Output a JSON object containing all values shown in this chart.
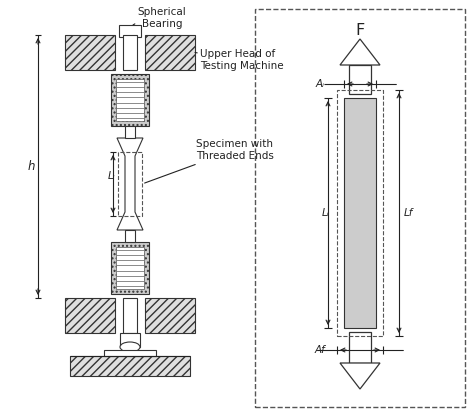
{
  "bg_color": "#ffffff",
  "line_color": "#222222",
  "labels": {
    "spherical_bearing": "Spherical\nBearing",
    "upper_head": "Upper Head of\nTesting Machine",
    "specimen": "Specimen with\nThreaded Ends",
    "h": "h",
    "Li_left": "Lᵢ",
    "F": "F",
    "Ai": "Aᵢ",
    "Af": "Af",
    "Li_right": "Lᵢ",
    "Lf_right": "Lf"
  },
  "font_size": 7.5
}
